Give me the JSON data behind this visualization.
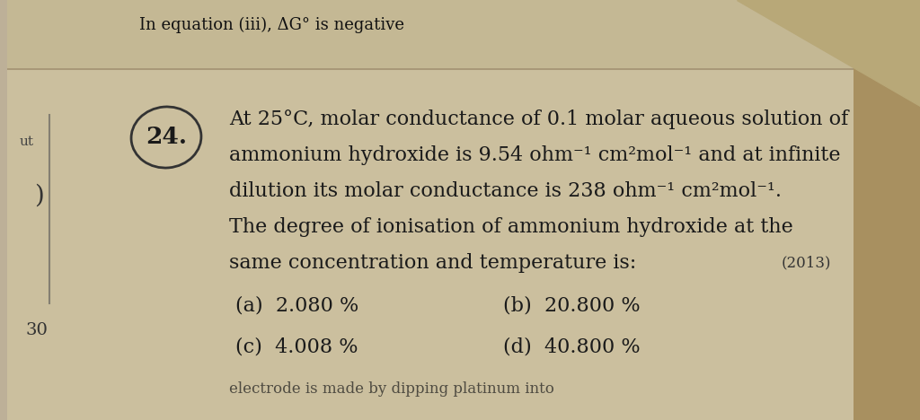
{
  "bg_color": "#b8a888",
  "page_color": "#d0c4a8",
  "top_bar_color": "#c8bca0",
  "text_color": "#111111",
  "dark_text": "#1a1a1a",
  "top_text": "In equation (iii), ΔG° is negative",
  "question_number": "24.",
  "question_lines": [
    "At 25°C, molar conductance of 0.1 molar aqueous solution of",
    "ammonium hydroxide is 9.54 ohm⁻¹ cm²mol⁻¹ and at infinite",
    "dilution its molar conductance is 238 ohm⁻¹ cm²mol⁻¹.",
    "The degree of ionisation of ammonium hydroxide at the",
    "same concentration and temperature is:"
  ],
  "year": "(2013)",
  "opt_a": "(a)  2.080 %",
  "opt_b": "(b)  20.800 %",
  "opt_c": "(c)  4.008 %",
  "opt_d": "(d)  40.800 %",
  "right_edge_color": "#9a8a6a",
  "top_right_color": "#a09878",
  "font_size_main": 16,
  "font_size_top": 13,
  "font_size_opt": 16
}
